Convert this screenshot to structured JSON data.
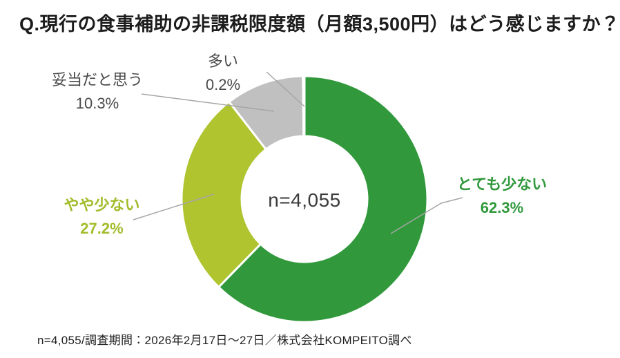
{
  "header": {
    "title": "Q.現行の食事補助の非課税限度額（月額3,500円）はどう感じますか？"
  },
  "chart_data": {
    "type": "pie",
    "subtype": "donut",
    "title": "Q.現行の食事補助の非課税限度額（月額3,500円）はどう感じますか？",
    "center_label": "n=4,055",
    "start_angle_deg": 0,
    "direction": "clockwise",
    "donut_hole_ratio": 0.51,
    "separator_color": "#ffffff",
    "leader_line_color": "#a6a6a6",
    "slices": [
      {
        "label": "とても少ない",
        "value": 62.3,
        "pct_label": "62.3%",
        "color": "#31993c",
        "label_color": "#31993c"
      },
      {
        "label": "やや少ない",
        "value": 27.2,
        "pct_label": "27.2%",
        "color": "#afc42f",
        "label_color": "#a2bc2b"
      },
      {
        "label": "妥当だと思う",
        "value": 10.3,
        "pct_label": "10.3%",
        "color": "#c1c0c0",
        "label_color": "#4a4a4a"
      },
      {
        "label": "多い",
        "value": 0.2,
        "pct_label": "0.2%",
        "color": "#d9d9d9",
        "label_color": "#4a4a4a"
      }
    ]
  },
  "footer": {
    "note": "n=4,055/調査期間：2026年2月17日〜27日／株式会社KOMPEITO調べ"
  }
}
